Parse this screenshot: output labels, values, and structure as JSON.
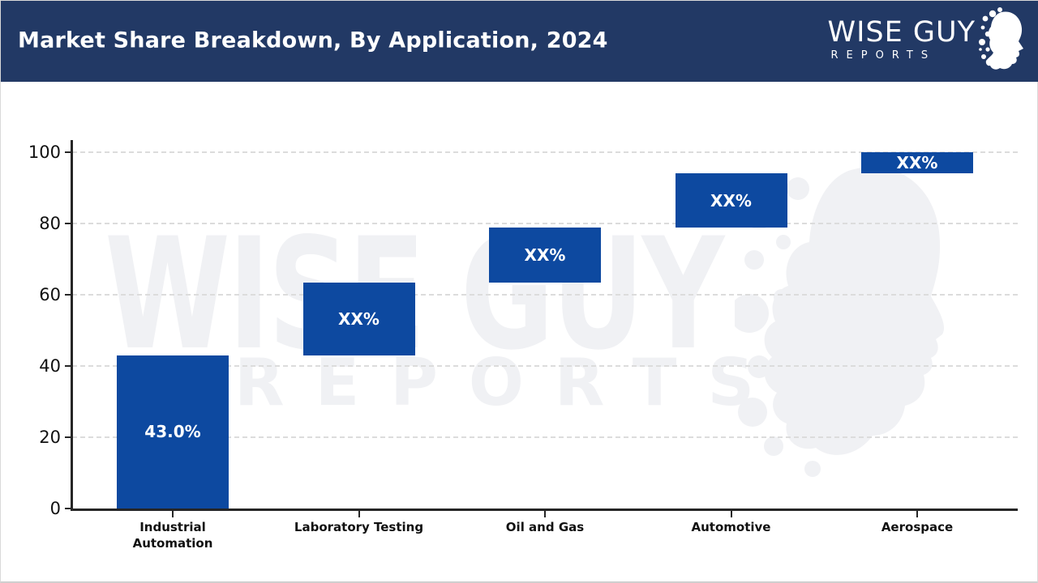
{
  "header": {
    "title": "Market Share Breakdown, By Application, 2024",
    "bg_color": "#223965",
    "logo": {
      "line1": "WISE GUY",
      "line2": "REPORTS"
    }
  },
  "watermark": {
    "line1": "WISE GUY",
    "line2": "REPORTS"
  },
  "chart_data": {
    "type": "bar",
    "subtype": "waterfall",
    "categories": [
      "Industrial Automation",
      "Laboratory Testing",
      "Oil and Gas",
      "Automotive",
      "Aerospace"
    ],
    "segments": [
      {
        "start": 0,
        "end": 43,
        "label": "43.0%"
      },
      {
        "start": 43,
        "end": 63.5,
        "label": "XX%"
      },
      {
        "start": 63.5,
        "end": 78.8,
        "label": "XX%"
      },
      {
        "start": 78.8,
        "end": 94,
        "label": "XX%"
      },
      {
        "start": 94,
        "end": 100,
        "label": "XX%"
      }
    ],
    "first_bar_value": "43.0%",
    "ylim": [
      0,
      100
    ],
    "yticks": [
      0,
      20,
      40,
      60,
      80,
      100
    ],
    "grid": true,
    "legend": "none",
    "bar_color": "#0d49a0",
    "bar_label_color": "#ffffff",
    "grid_color": "#dcdcdc",
    "axis_color": "#262626",
    "tick_label_color": "#111111"
  }
}
